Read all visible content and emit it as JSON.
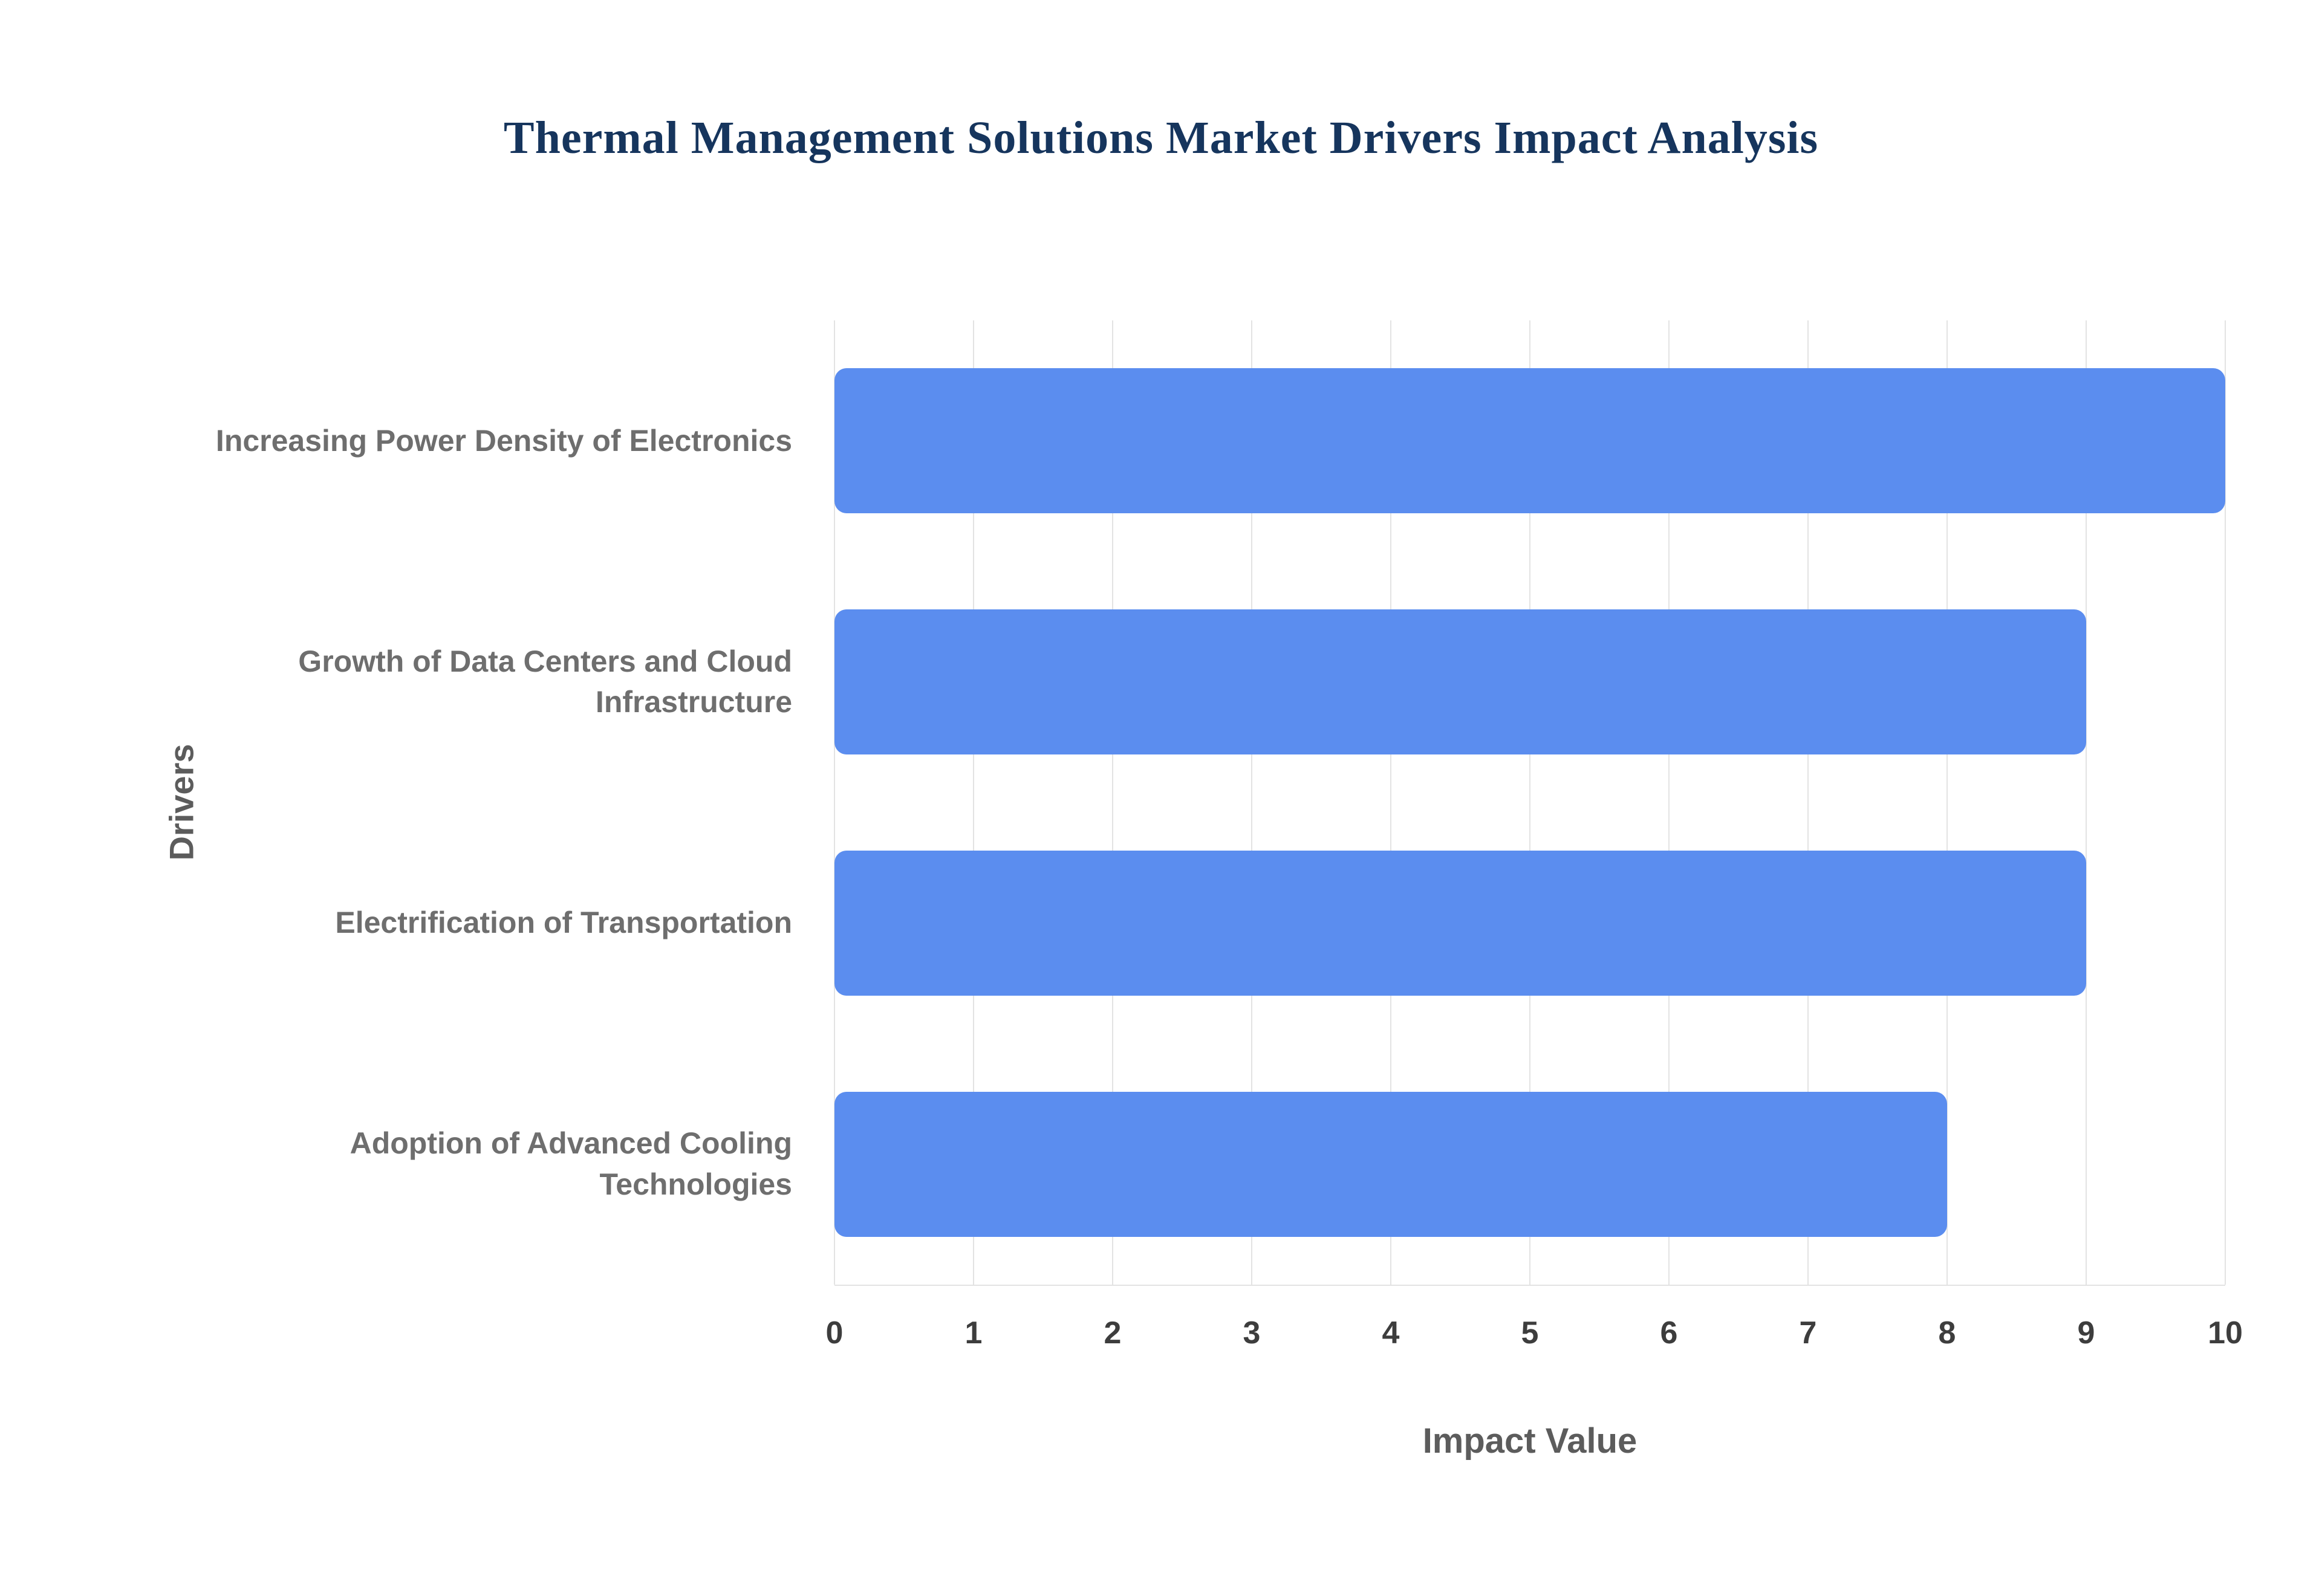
{
  "chart_data": {
    "type": "bar",
    "orientation": "horizontal",
    "title": "Thermal Management Solutions Market Drivers Impact Analysis",
    "categories": [
      "Increasing Power Density of Electronics",
      "Growth of Data Centers and Cloud Infrastructure",
      "Electrification of Transportation",
      "Adoption of Advanced Cooling Technologies"
    ],
    "values": [
      10,
      9,
      9,
      8
    ],
    "xlabel": "Impact Value",
    "ylabel": "Drivers",
    "xlim": [
      0,
      10
    ],
    "xticks": [
      0,
      1,
      2,
      3,
      4,
      5,
      6,
      7,
      8,
      9,
      10
    ],
    "grid": "vertical",
    "legend": "none",
    "colors": {
      "bar": "#5b8def",
      "title": "#16355d",
      "category_label": "#6e6e6e",
      "tick_label": "#3d3d3d",
      "axis_title": "#5c5c5c",
      "gridline": "#e3e3e3"
    }
  }
}
